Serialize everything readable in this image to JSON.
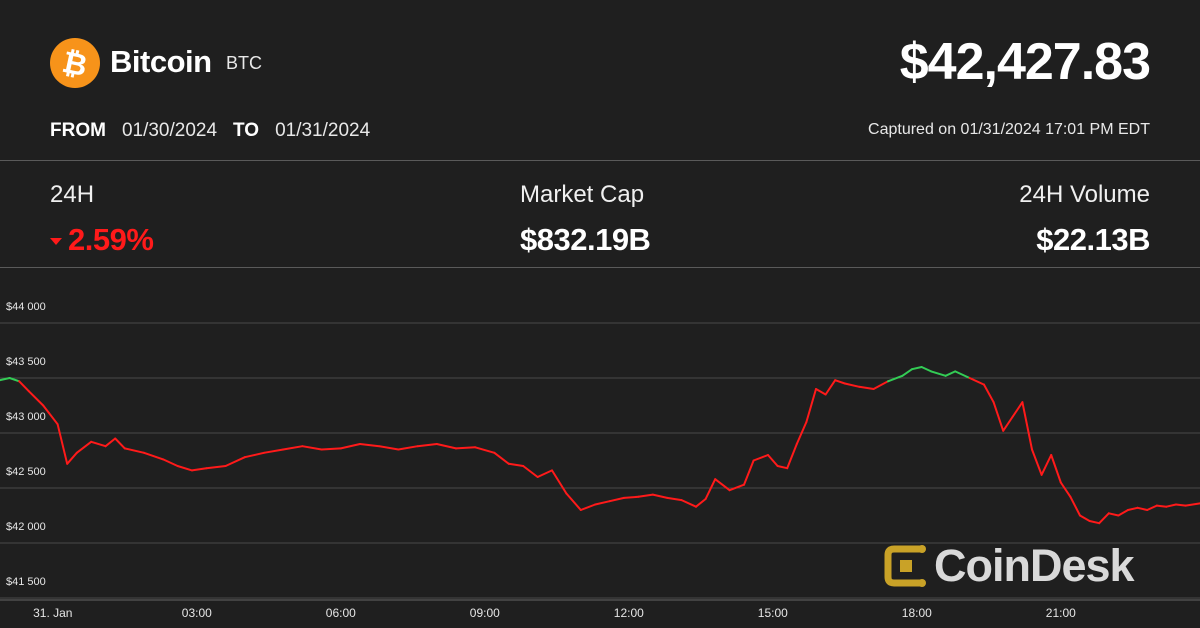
{
  "header": {
    "coin_name": "Bitcoin",
    "coin_symbol": "BTC",
    "coin_logo_icon": "bitcoin-logo-icon",
    "price": "$42,427.83",
    "from_label": "FROM",
    "from_date": "01/30/2024",
    "to_label": "TO",
    "to_date": "01/31/2024",
    "captured": "Captured on 01/31/2024 17:01 PM EDT"
  },
  "stats": {
    "change_label": "24H",
    "change_value": "2.59%",
    "change_direction": "down",
    "market_cap_label": "Market Cap",
    "market_cap_value": "$832.19B",
    "volume_label": "24H Volume",
    "volume_value": "$22.13B"
  },
  "brand": {
    "name": "CoinDesk",
    "icon": "coindesk-logo-icon"
  },
  "colors": {
    "background": "#1f1f1f",
    "down": "#ff1a1a",
    "up": "#33cc55",
    "coin": "#f7931a"
  },
  "chart_data": {
    "type": "line",
    "title": "",
    "xlabel": "",
    "ylabel": "",
    "ylim": [
      41500,
      44000
    ],
    "xlim": [
      -1.1,
      23.9
    ],
    "y_ticks": [
      44000,
      43500,
      43000,
      42500,
      42000,
      41500
    ],
    "y_tick_labels": [
      "$44 000",
      "$43 500",
      "$43 000",
      "$42 500",
      "$42 000",
      "$41 500"
    ],
    "x_ticks": [
      0,
      3,
      6,
      9,
      12,
      15,
      18,
      21
    ],
    "x_tick_labels": [
      "31. Jan",
      "03:00",
      "06:00",
      "09:00",
      "12:00",
      "15:00",
      "18:00",
      "21:00"
    ],
    "baseline": 43460,
    "grid": true,
    "series": [
      {
        "x": [
          -1.1,
          -0.9,
          -0.7,
          -0.5,
          -0.2,
          0.1,
          0.3,
          0.5,
          0.8,
          1.1,
          1.3,
          1.5,
          1.9,
          2.3,
          2.6,
          2.9,
          3.2,
          3.6,
          4.0,
          4.4,
          4.8,
          5.2,
          5.6,
          6.0,
          6.4,
          6.8,
          7.2,
          7.6,
          8.0,
          8.4,
          8.8,
          9.2,
          9.5,
          9.8,
          10.1,
          10.4,
          10.7,
          11.0,
          11.3,
          11.6,
          11.9,
          12.2,
          12.5,
          12.8,
          13.1,
          13.4,
          13.6,
          13.8,
          14.1,
          14.4,
          14.6,
          14.9,
          15.1,
          15.3,
          15.5,
          15.7,
          15.9,
          16.1,
          16.3,
          16.5,
          16.8,
          17.1,
          17.4,
          17.7,
          17.9,
          18.1,
          18.3,
          18.6,
          18.8,
          19.1,
          19.4,
          19.6,
          19.8,
          20.0,
          20.2,
          20.4,
          20.6,
          20.8,
          21.0,
          21.2,
          21.4,
          21.6,
          21.8,
          22.0,
          22.2,
          22.4,
          22.6,
          22.8,
          23.0,
          23.2,
          23.4,
          23.6,
          23.9
        ],
        "y": [
          43480,
          43500,
          43470,
          43380,
          43250,
          43080,
          42720,
          42820,
          42920,
          42880,
          42950,
          42860,
          42820,
          42760,
          42700,
          42660,
          42680,
          42700,
          42780,
          42820,
          42850,
          42880,
          42850,
          42860,
          42900,
          42880,
          42850,
          42880,
          42900,
          42860,
          42870,
          42820,
          42720,
          42700,
          42600,
          42660,
          42450,
          42300,
          42350,
          42380,
          42410,
          42420,
          42440,
          42410,
          42390,
          42330,
          42400,
          42580,
          42480,
          42530,
          42750,
          42800,
          42700,
          42680,
          42900,
          43100,
          43400,
          43350,
          43480,
          43450,
          43420,
          43400,
          43470,
          43520,
          43580,
          43600,
          43560,
          43520,
          43560,
          43500,
          43440,
          43280,
          43020,
          43150,
          43280,
          42850,
          42620,
          42800,
          42550,
          42420,
          42250,
          42200,
          42180,
          42270,
          42250,
          42300,
          42320,
          42300,
          42340,
          42330,
          42350,
          42340,
          42360
        ]
      }
    ]
  }
}
